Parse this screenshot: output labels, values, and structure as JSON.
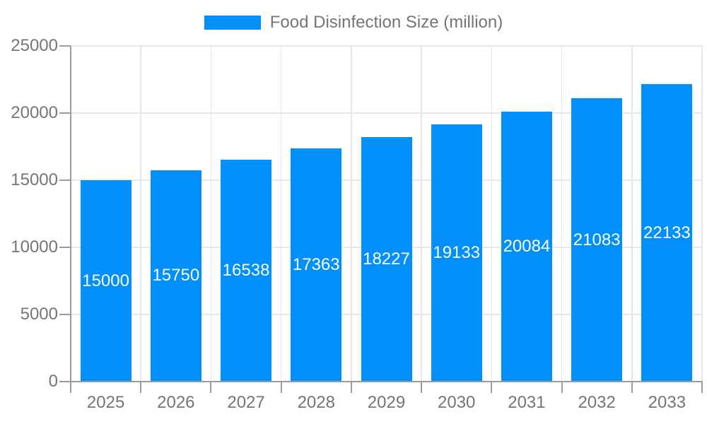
{
  "legend": {
    "label": "Food Disinfection Size (million)",
    "position": "top"
  },
  "colors": {
    "bar": "#008FFB",
    "axis": "#9b9b9b",
    "grid": "#e7e7e7",
    "label_text": "#757575",
    "value_text": "#ffffff",
    "background": "#ffffff"
  },
  "chart_data": {
    "type": "bar",
    "title": "",
    "xlabel": "",
    "ylabel": "",
    "categories": [
      "2025",
      "2026",
      "2027",
      "2028",
      "2029",
      "2030",
      "2031",
      "2032",
      "2033"
    ],
    "values": [
      15000,
      15750,
      16538,
      17363,
      18227,
      19133,
      20084,
      21083,
      22133
    ],
    "series": [
      {
        "name": "Food Disinfection Size (million)",
        "values": [
          15000,
          15750,
          16538,
          17363,
          18227,
          19133,
          20084,
          21083,
          22133
        ]
      }
    ],
    "value_labels": [
      "15000",
      "15750",
      "16538",
      "17363",
      "18227",
      "19133",
      "20084",
      "21083",
      "22133"
    ],
    "value_label_position": "inside-center",
    "ylim": [
      0,
      25000
    ],
    "yticks": [
      0,
      5000,
      10000,
      15000,
      20000,
      25000
    ],
    "grid": true,
    "legend_position": "top"
  }
}
